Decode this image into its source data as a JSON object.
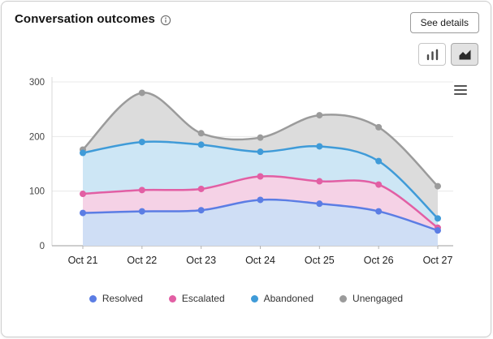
{
  "header": {
    "title": "Conversation outcomes",
    "info_icon": "info-icon",
    "see_details_label": "See details"
  },
  "toolbar": {
    "chart_type_options": [
      "column-chart",
      "area-chart"
    ],
    "selected_chart_type": "area-chart",
    "menu_icon": "hamburger-menu-icon"
  },
  "chart_data": {
    "type": "area",
    "title": "Conversation outcomes",
    "categories": [
      "Oct 21",
      "Oct 22",
      "Oct 23",
      "Oct 24",
      "Oct 25",
      "Oct 26",
      "Oct 27"
    ],
    "series": [
      {
        "name": "Resolved",
        "color": "#5b7de4",
        "fill": "#cfdef5",
        "values": [
          60,
          63,
          65,
          84,
          77,
          63,
          28
        ]
      },
      {
        "name": "Escalated",
        "color": "#e25fa4",
        "fill": "#f5d2e6",
        "values": [
          95,
          102,
          104,
          127,
          118,
          112,
          33
        ]
      },
      {
        "name": "Abandoned",
        "color": "#3f9bd8",
        "fill": "#cde6f5",
        "values": [
          170,
          190,
          185,
          172,
          182,
          155,
          50
        ]
      },
      {
        "name": "Unengaged",
        "color": "#9b9b9b",
        "fill": "#dcdcdc",
        "values": [
          176,
          280,
          206,
          198,
          239,
          217,
          109
        ]
      }
    ],
    "xlabel": "",
    "ylabel": "",
    "ylim": [
      0,
      300
    ],
    "yticks": [
      0,
      100,
      200,
      300
    ],
    "grid": true,
    "smooth": true,
    "legend_position": "bottom"
  }
}
